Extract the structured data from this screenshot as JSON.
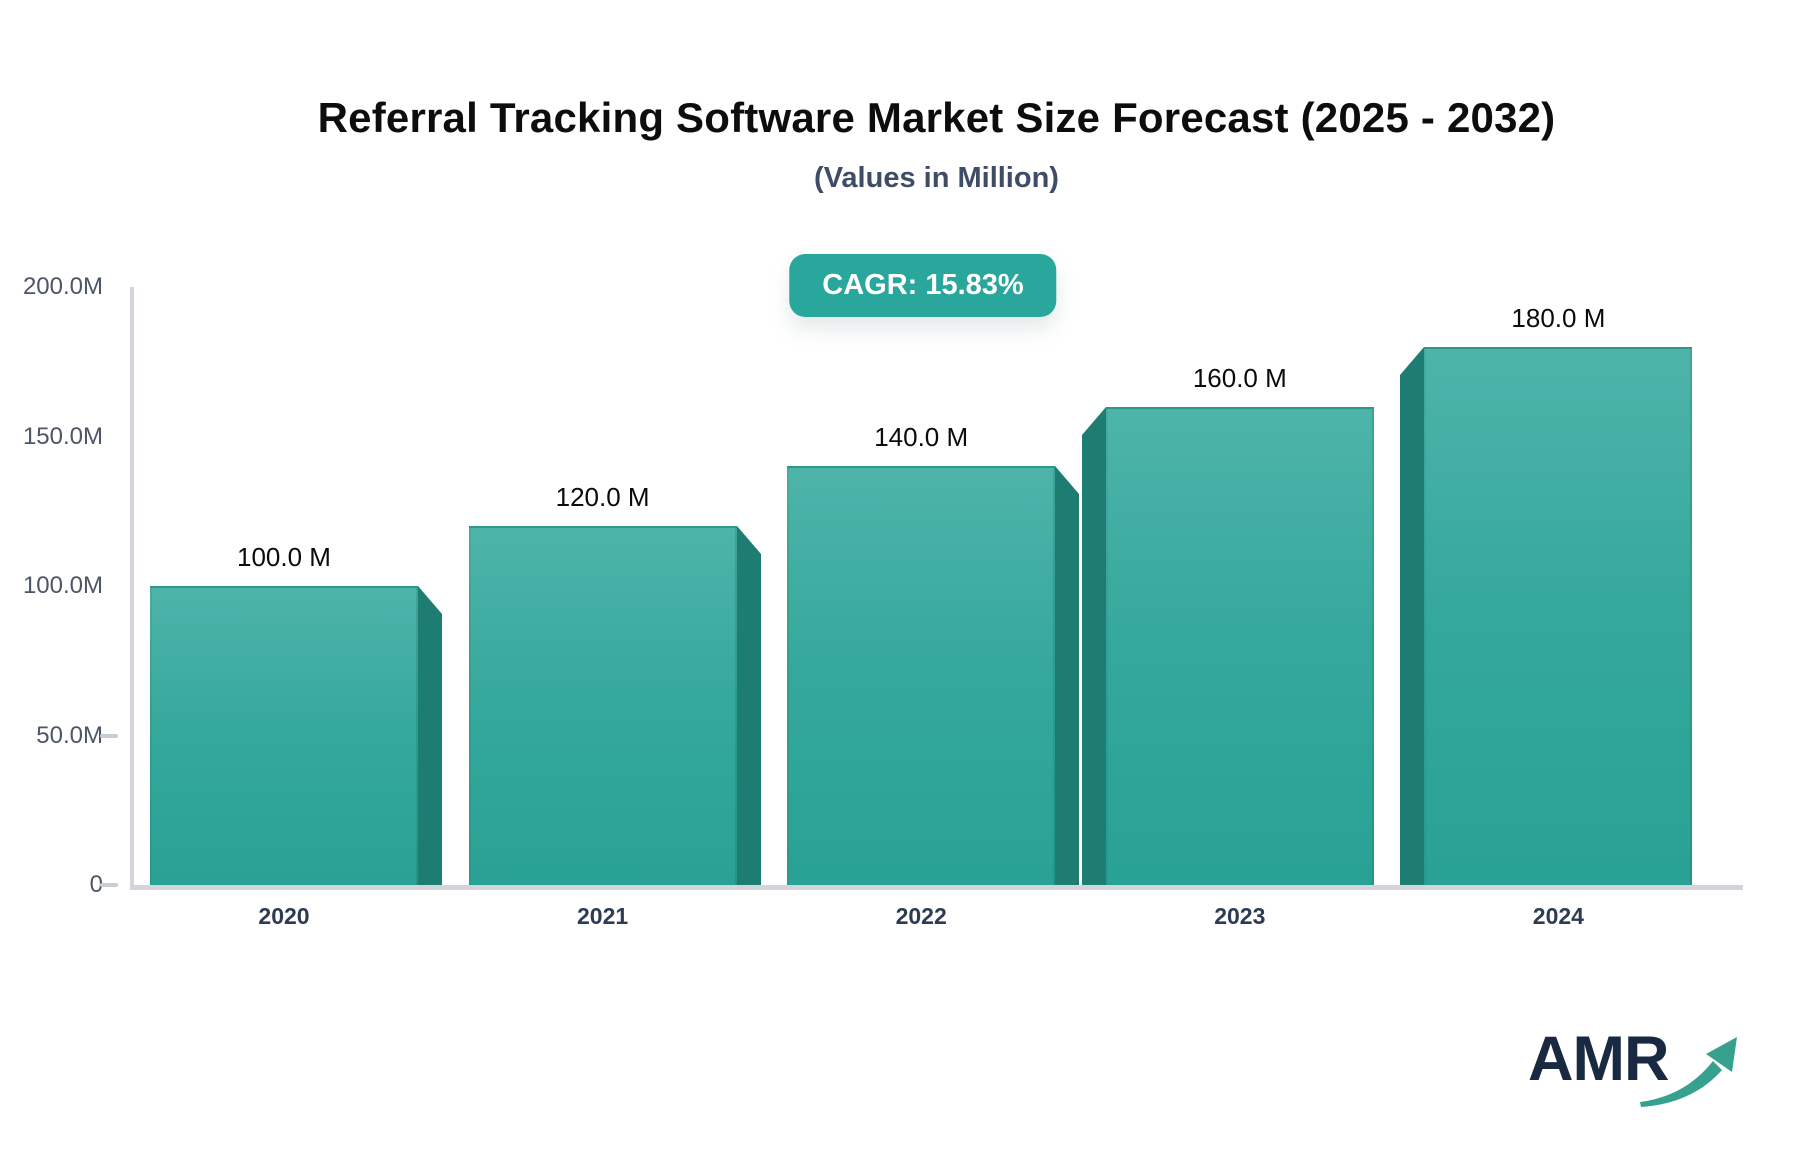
{
  "header": {
    "title": "Referral Tracking Software Market Size Forecast (2025 - 2032)",
    "subtitle": "(Values in Million)"
  },
  "badge": {
    "label": "CAGR: 15.83%",
    "bg_color": "#2aa79c",
    "text_color": "#ffffff"
  },
  "chart_data": {
    "type": "bar",
    "title": "Referral Tracking Software Market Size Forecast (2025 - 2032)",
    "subtitle": "(Values in Million)",
    "unit": "Million",
    "categories": [
      "2020",
      "2021",
      "2022",
      "2023",
      "2024"
    ],
    "values": [
      100.0,
      120.0,
      140.0,
      160.0,
      180.0
    ],
    "bar_labels": [
      "100.0 M",
      "120.0 M",
      "140.0 M",
      "160.0 M",
      "180.0 M"
    ],
    "yticks": [
      {
        "label": "200.0M",
        "value": 200,
        "tick": false
      },
      {
        "label": "150.0M",
        "value": 150,
        "tick": false
      },
      {
        "label": "100.0M",
        "value": 100,
        "tick": false
      },
      {
        "label": "50.0M",
        "value": 50,
        "tick": true
      },
      {
        "label": "0",
        "value": 0,
        "tick": true
      }
    ],
    "ylim": [
      0,
      200
    ],
    "grid": false,
    "legend": null,
    "colors": {
      "bar_top": "#4eb4aa",
      "bar_bottom": "#28a294",
      "bar_side": "#1d7d72",
      "axis_line": "#d3d5db",
      "ytick_text": "#4d5666",
      "xtick_text": "#2e3b54",
      "value_text": "#0b0b0b"
    }
  },
  "logo": {
    "text": "AMR",
    "text_color": "#1a2942",
    "arrow_color": "#35a18e"
  }
}
